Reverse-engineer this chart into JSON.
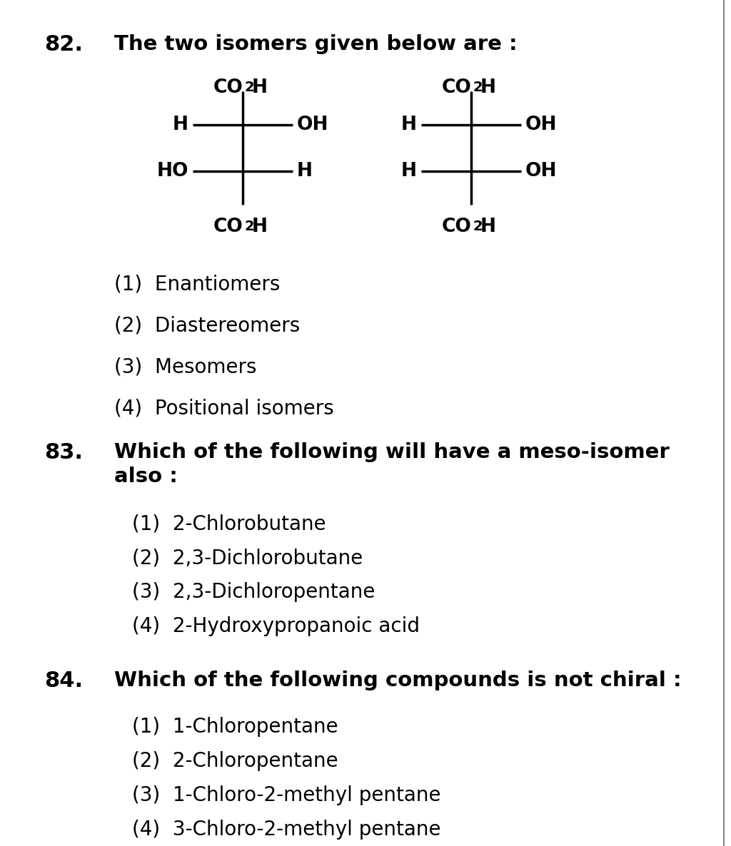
{
  "bg_color": "#ffffff",
  "text_color": "#000000",
  "fig_w": 10.24,
  "fig_h": 11.86,
  "dpi": 100,
  "lw": 2.5,
  "q82_num": "82.",
  "q82_txt": "The two isomers given below are :",
  "q83_num": "83.",
  "q83_line1": "Which of the following will have a meso-isomer",
  "q83_line2": "also :",
  "q84_num": "84.",
  "q84_txt": "Which of the following compounds is not chiral :",
  "q82_opts": [
    "(1)  Enantiomers",
    "(2)  Diastereomers",
    "(3)  Mesomers",
    "(4)  Positional isomers"
  ],
  "q83_opts": [
    "(1)  2-Chlorobutane",
    "(2)  2,3-Dichlorobutane",
    "(3)  2,3-Dichloropentane",
    "(4)  2-Hydroxypropanoic acid"
  ],
  "q84_opts": [
    "(1)  1-Chloropentane",
    "(2)  2-Chloropentane",
    "(3)  1-Chloro-2-methyl pentane",
    "(4)  3-Chloro-2-methyl pentane"
  ],
  "fs_qnum": 22,
  "fs_qtext": 21,
  "fs_opt": 20,
  "fs_struct": 19
}
